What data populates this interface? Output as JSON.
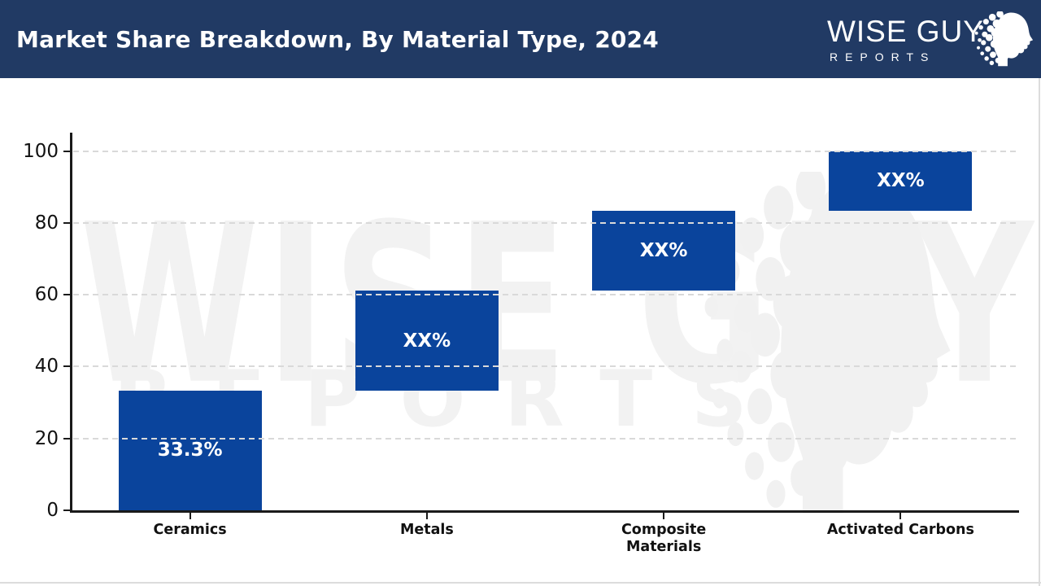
{
  "header": {
    "title": "Market Share Breakdown, By Material Type, 2024",
    "background": "#213a64",
    "logo": {
      "wordmark": "WISE GUY",
      "subtext": "REPORTS"
    }
  },
  "watermark": {
    "line1": "WISE GUY",
    "line2": "REPORTS"
  },
  "chart_data": {
    "type": "bar",
    "variant": "waterfall",
    "title": "Market Share Breakdown, By Material Type, 2024",
    "categories": [
      "Ceramics",
      "Metals",
      "Composite Materials",
      "Activated Carbons"
    ],
    "xtick_lines": [
      [
        "Ceramics"
      ],
      [
        "Metals"
      ],
      [
        "Composite",
        "Materials"
      ],
      [
        "Activated Carbons"
      ]
    ],
    "series": [
      {
        "name": "Market share",
        "segments": [
          {
            "category": "Ceramics",
            "start": 0,
            "end": 33.3,
            "label": "33.3%"
          },
          {
            "category": "Metals",
            "start": 33.3,
            "end": 61.1,
            "label": "XX%"
          },
          {
            "category": "Composite Materials",
            "start": 61.1,
            "end": 83.3,
            "label": "XX%"
          },
          {
            "category": "Activated Carbons",
            "start": 83.3,
            "end": 100,
            "label": "XX%"
          }
        ]
      }
    ],
    "ylim": [
      0,
      100
    ],
    "yticks": [
      0,
      20,
      40,
      60,
      80,
      100
    ],
    "grid": {
      "horizontal": true,
      "style": "dashed",
      "color": "#d9d9d9",
      "above_bars": true
    },
    "bar_color": "#0a449c",
    "bar_label_color": "#ffffff",
    "axis_color": "#1a1a1a",
    "xlabel": "",
    "ylabel": "",
    "legend": "none"
  }
}
